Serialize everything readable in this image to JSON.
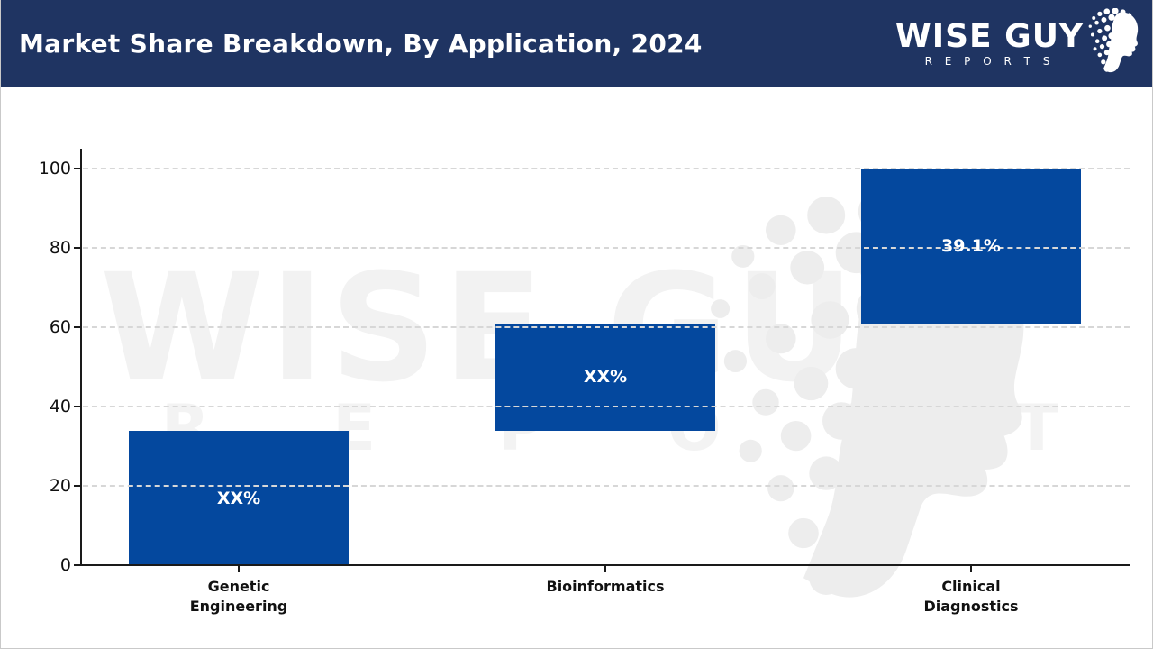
{
  "header": {
    "title": "Market Share Breakdown, By Application, 2024",
    "logo": {
      "line1": "WISE GUY",
      "line2": "R E P O R T S"
    }
  },
  "watermark": {
    "line1": "WISE GUY",
    "line2": "R E P O R T S"
  },
  "colors": {
    "header_bg": "#1f3462",
    "bar_fill": "#04489e",
    "bar_label_text": "#ffffff",
    "grid_line": "#d7d7d7",
    "axis_line": "#1a1a1a",
    "tick_text": "#111111",
    "watermark": "#f2f2f2"
  },
  "chart_data": {
    "type": "bar",
    "subtype": "waterfall",
    "title": "Market Share Breakdown, By Application, 2024",
    "categories": [
      "Genetic\nEngineering",
      "Bioinformatics",
      "Clinical\nDiagnostics"
    ],
    "series": [
      {
        "segments": [
          {
            "category": "Genetic Engineering",
            "start": 0,
            "end": 33.8,
            "label": "XX%"
          },
          {
            "category": "Bioinformatics",
            "start": 33.8,
            "end": 60.9,
            "label": "XX%"
          },
          {
            "category": "Clinical Diagnostics",
            "start": 60.9,
            "end": 100,
            "label": "39.1%"
          }
        ]
      }
    ],
    "xlabel": "",
    "ylabel": "",
    "yticks": [
      0,
      20,
      40,
      60,
      80,
      100
    ],
    "ylim": [
      0,
      104.8
    ],
    "grid": "horizontal-dashed-over-bars",
    "legend_position": "none"
  }
}
